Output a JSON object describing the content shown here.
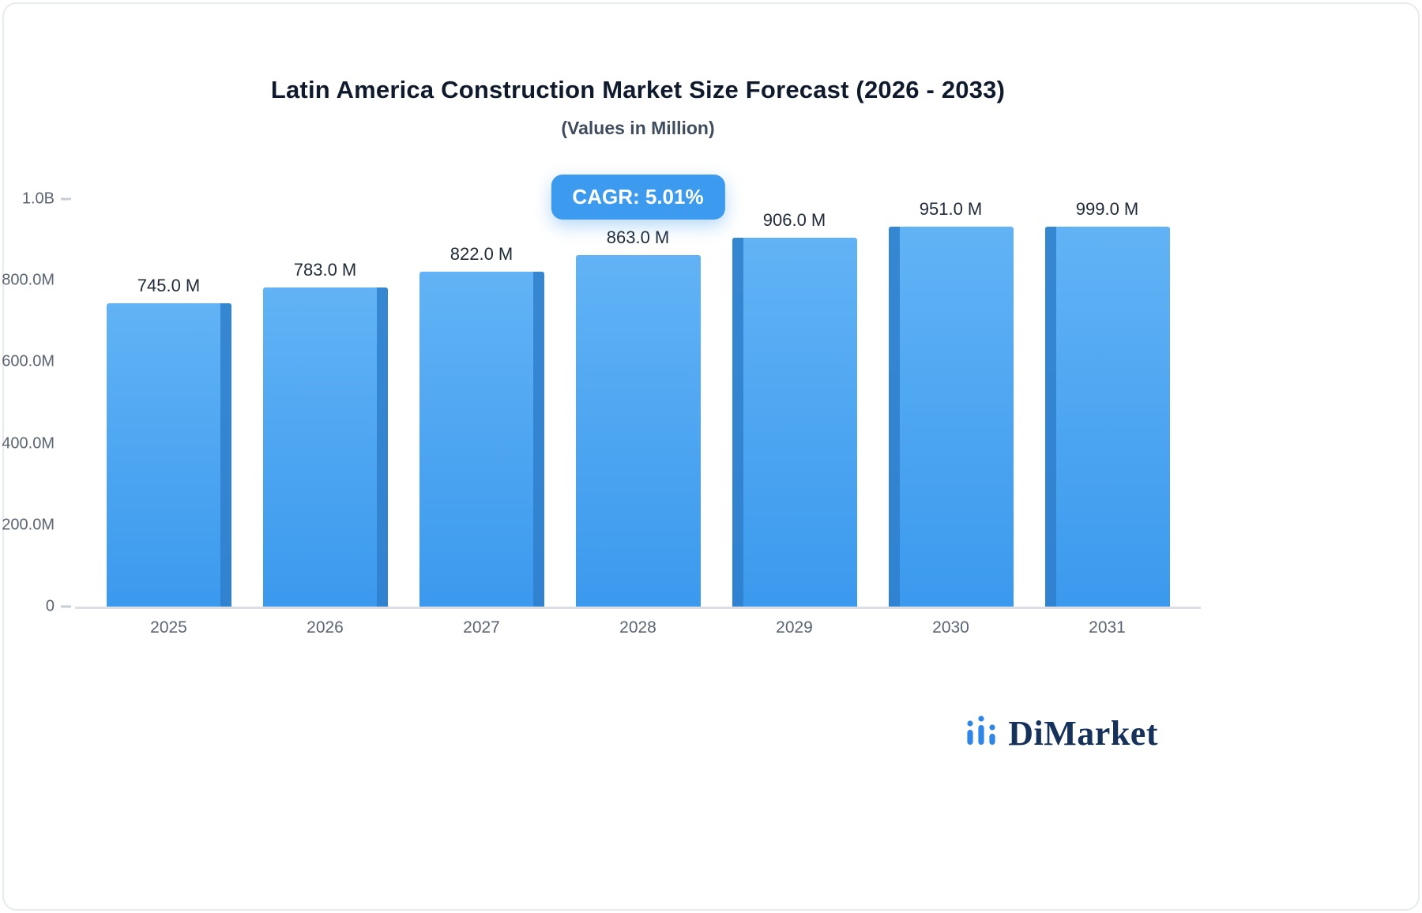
{
  "cagr_badge": "CAGR: 5.01%",
  "brand": {
    "name": "DiMarket",
    "icon": "dimarket-bars-icon"
  },
  "chart_data": {
    "type": "bar",
    "title": "Latin America Construction Market Size Forecast (2026 - 2033)",
    "subtitle": "(Values in Million)",
    "categories": [
      "2025",
      "2026",
      "2027",
      "2028",
      "2029",
      "2030",
      "2031"
    ],
    "values": [
      745,
      783,
      822,
      863,
      906,
      951,
      999
    ],
    "value_labels": [
      "745.0 M",
      "783.0 M",
      "822.0 M",
      "863.0 M",
      "906.0 M",
      "951.0 M",
      "999.0 M"
    ],
    "xlabel": "",
    "ylabel": "",
    "ylim": [
      0,
      1000
    ],
    "y_ticks": [
      {
        "value": 0,
        "label": "0",
        "has_tick": true
      },
      {
        "value": 200,
        "label": "200.0M",
        "has_tick": false
      },
      {
        "value": 400,
        "label": "400.0M",
        "has_tick": false
      },
      {
        "value": 600,
        "label": "600.0M",
        "has_tick": false
      },
      {
        "value": 800,
        "label": "800.0M",
        "has_tick": false
      },
      {
        "value": 1000,
        "label": "1.0B",
        "has_tick": true
      }
    ],
    "annotations": [
      "CAGR: 5.01%"
    ],
    "grid": false,
    "legend": "none",
    "colors": {
      "bar_top": "#61B3F5",
      "bar_bottom": "#3B99EE",
      "bar_side": "#2F7FCB",
      "badge_bg": "#3D9BEF",
      "badge_text": "#FFFFFF",
      "title_text": "#0F1B2D",
      "subtitle_text": "#3F4C5E",
      "axis_text": "#5A6472",
      "value_text": "#1F2937",
      "baseline": "#DCDFE4",
      "brand_text": "#16325B",
      "brand_icon": "#2E86E8"
    }
  }
}
